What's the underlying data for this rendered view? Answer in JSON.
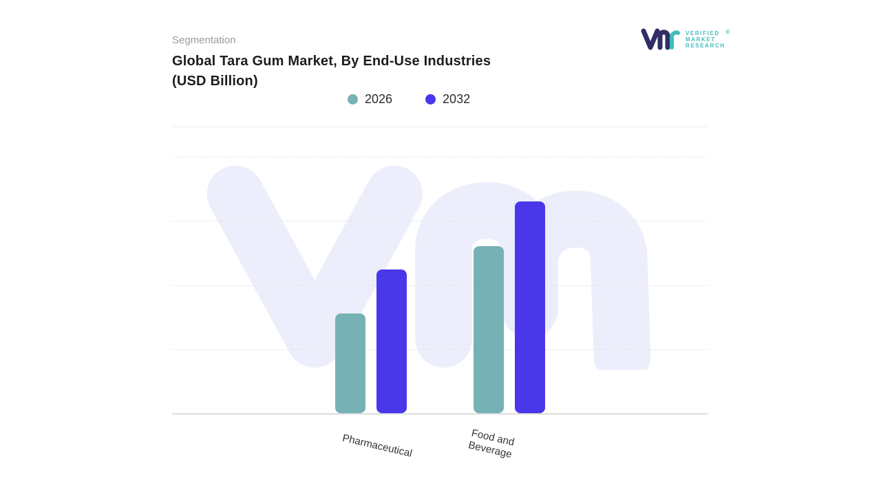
{
  "header": {
    "eyebrow": "Segmentation",
    "title_line1": "Global Tara Gum Market, By End-Use Industries",
    "title_line2": "(USD Billion)"
  },
  "logo": {
    "line1": "VERIFIED",
    "line2": "MARKET",
    "line3": "RESEARCH",
    "registered": "®",
    "mark_navy": "#312e66",
    "mark_teal": "#3fbdbd"
  },
  "legend": [
    {
      "label": "2026",
      "color": "#76b2b5"
    },
    {
      "label": "2032",
      "color": "#4a37ea"
    }
  ],
  "chart_data": {
    "type": "bar",
    "title": "Global Tara Gum Market, By End-Use Industries (USD Billion)",
    "categories": [
      "Pharmaceutical",
      "Food and Beverage"
    ],
    "series": [
      {
        "name": "2026",
        "color": "#76b2b5",
        "values": [
          1.55,
          2.61
        ]
      },
      {
        "name": "2032",
        "color": "#4a37ea",
        "values": [
          2.24,
          3.3
        ]
      }
    ],
    "xlabel": "",
    "ylabel": "",
    "ylim": [
      0,
      4
    ],
    "grid": "horizontal-dashed",
    "legend_position": "top",
    "watermark_color": "#edeefb"
  }
}
